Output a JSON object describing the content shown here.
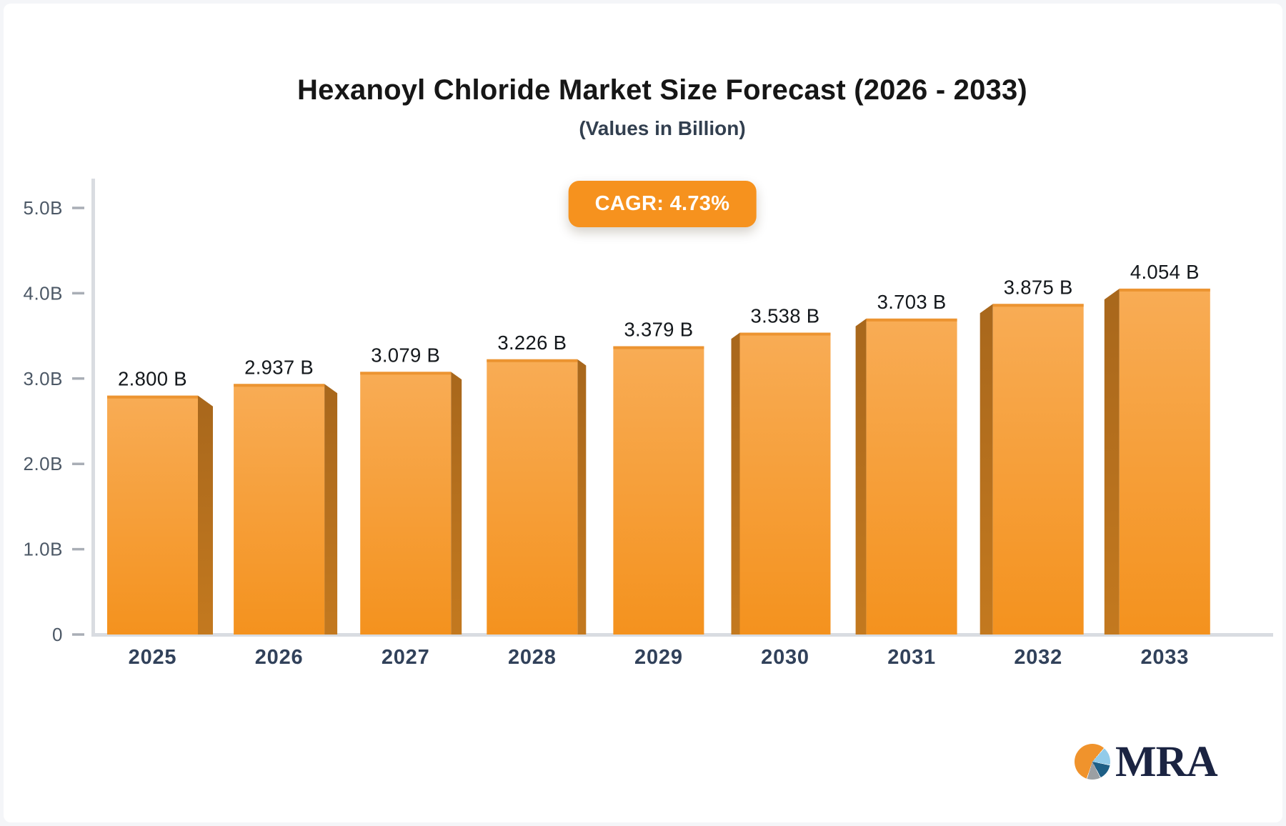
{
  "chart_data": {
    "type": "bar",
    "title": "Hexanoyl Chloride Market Size Forecast (2026 - 2033)",
    "subtitle": "(Values in Billion)",
    "cagr_label": "CAGR: 4.73%",
    "categories": [
      "2025",
      "2026",
      "2027",
      "2028",
      "2029",
      "2030",
      "2031",
      "2032",
      "2033"
    ],
    "values": [
      2.8,
      2.937,
      3.079,
      3.226,
      3.379,
      3.538,
      3.703,
      3.875,
      4.054
    ],
    "bar_labels": [
      "2.800 B",
      "2.937 B",
      "3.079 B",
      "3.226 B",
      "3.379 B",
      "3.538 B",
      "3.703 B",
      "3.875 B",
      "4.054 B"
    ],
    "ylim": [
      0,
      5.0
    ],
    "y_ticks": [
      {
        "label": "0",
        "value": 0
      },
      {
        "label": "1.0B",
        "value": 1
      },
      {
        "label": "2.0B",
        "value": 2
      },
      {
        "label": "3.0B",
        "value": 3
      },
      {
        "label": "4.0B",
        "value": 4
      },
      {
        "label": "5.0B",
        "value": 5
      }
    ],
    "grid": false,
    "legend": false
  },
  "logo": {
    "text": "MRA"
  },
  "colors": {
    "badge_bg": "#f6921e",
    "bar_front_top": "#f8ac55",
    "bar_front_bottom": "#f4921e",
    "bar_top_edge": "#ec9431",
    "bar_side_top": "#a8671c",
    "bar_side_bottom": "#c3791f",
    "axis_line": "#d9dce1",
    "tick_dash": "#a9aeb6",
    "tick_text": "#4c5866",
    "year_text": "#31415a",
    "value_text": "#14181c",
    "logo_navy": "#1b2442",
    "logo_orange": "#f0932c",
    "logo_lightblue": "#92cbe9",
    "logo_blue": "#1e5f86",
    "logo_gray": "#9b9fa3"
  }
}
